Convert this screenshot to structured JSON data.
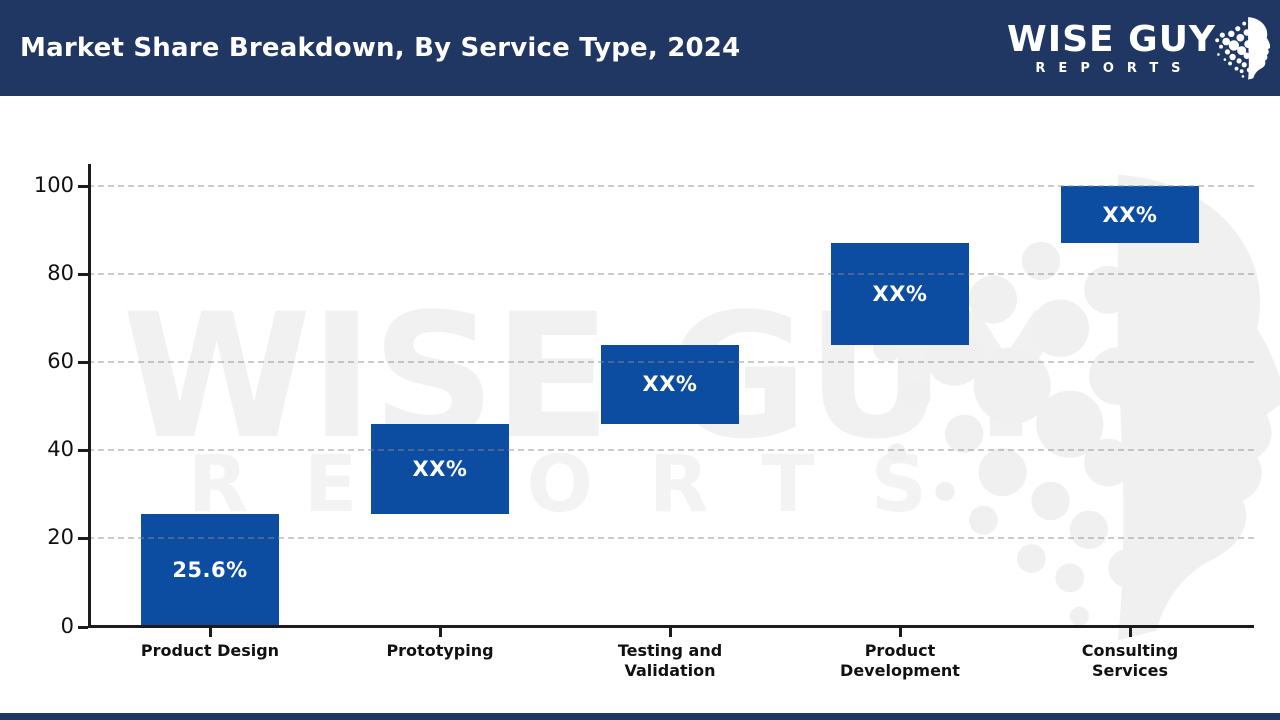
{
  "header": {
    "title": "Market Share Breakdown, By Service Type, 2024",
    "logo": {
      "line1": "WISE GUY",
      "line2": "REPORTS"
    }
  },
  "watermark": {
    "line1": "WISE GUY",
    "line2": "REPORTS"
  },
  "colors": {
    "header_bg": "#203663",
    "footer_bg": "#203663",
    "bar": "#0c4da2",
    "bar_label": "#ffffff",
    "axis": "#1c1c1c",
    "gridline": "#cbcbcb"
  },
  "chart_data": {
    "type": "bar",
    "subtype": "waterfall-floating-bars",
    "title": "Market Share Breakdown, By Service Type, 2024",
    "xlabel": "",
    "ylabel": "",
    "ylim": [
      0,
      105
    ],
    "y_ticks": [
      0,
      20,
      40,
      60,
      80,
      100
    ],
    "grid": "dashed-horizontal",
    "legend": "none",
    "categories": [
      {
        "lines": [
          "Product Design"
        ]
      },
      {
        "lines": [
          "Prototyping"
        ]
      },
      {
        "lines": [
          "Testing and",
          "Validation"
        ]
      },
      {
        "lines": [
          "Product",
          "Development"
        ]
      },
      {
        "lines": [
          "Consulting",
          "Services"
        ]
      }
    ],
    "segments": [
      {
        "category": "Product Design",
        "start": 0,
        "end": 25.6,
        "label": "25.6%"
      },
      {
        "category": "Prototyping",
        "start": 25.6,
        "end": 46,
        "label": "XX%"
      },
      {
        "category": "Testing and Validation",
        "start": 46,
        "end": 64,
        "label": "XX%"
      },
      {
        "category": "Product Development",
        "start": 64,
        "end": 87,
        "label": "XX%"
      },
      {
        "category": "Consulting Services",
        "start": 87,
        "end": 100,
        "label": "XX%"
      }
    ]
  }
}
